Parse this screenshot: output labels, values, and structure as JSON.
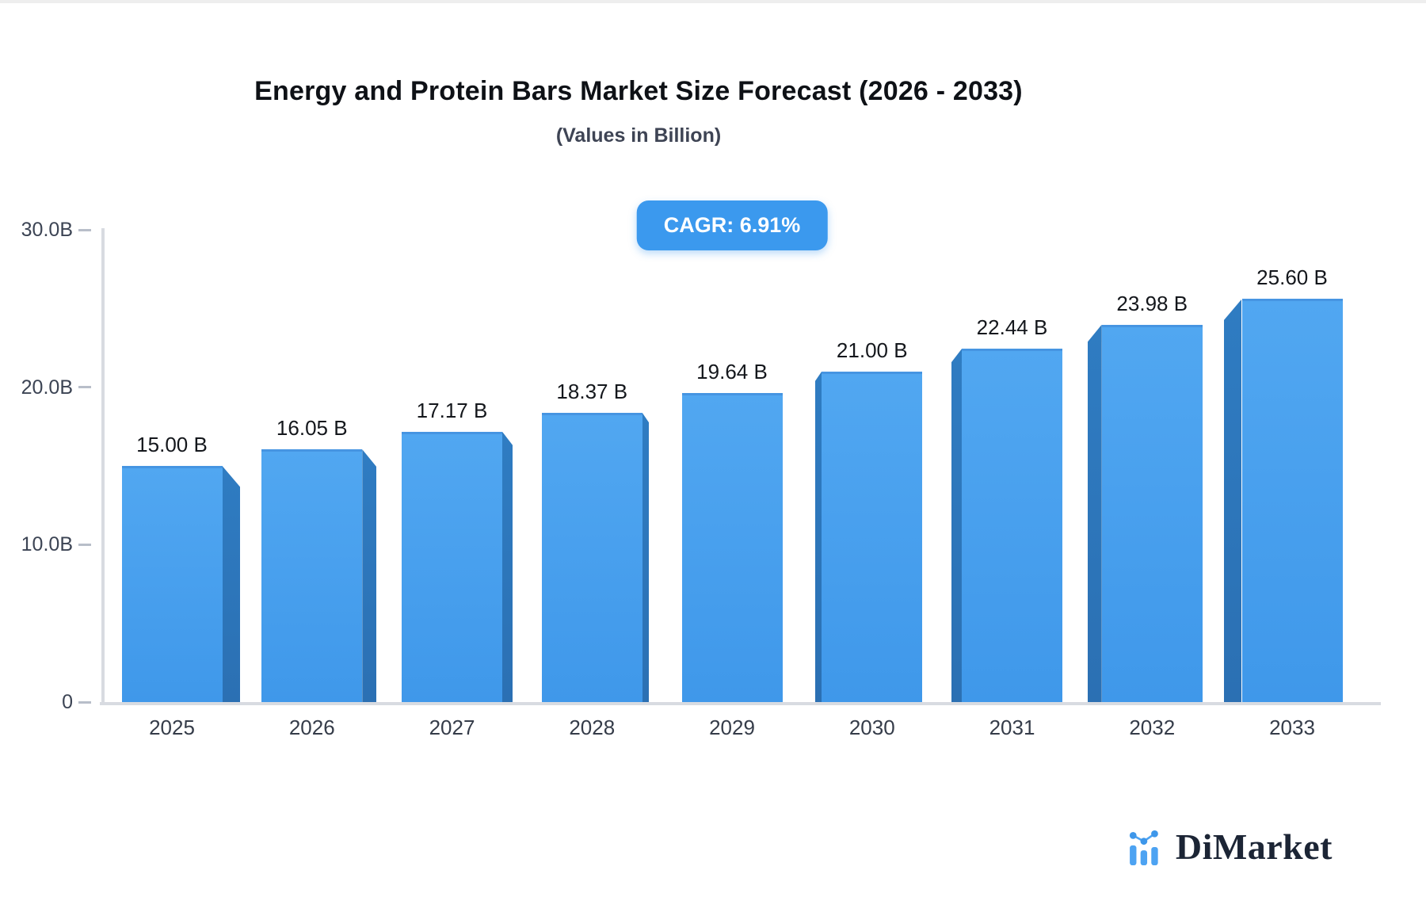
{
  "header": {
    "title": "Energy and Protein Bars Market Size Forecast (2026 - 2033)",
    "subtitle": "(Values in Billion)",
    "cagr_label": "CAGR: 6.91%"
  },
  "chart_data": {
    "type": "bar",
    "title": "Energy and Protein Bars Market Size Forecast (2026 - 2033)",
    "subtitle": "(Values in Billion)",
    "categories": [
      "2025",
      "2026",
      "2027",
      "2028",
      "2029",
      "2030",
      "2031",
      "2032",
      "2033"
    ],
    "values": [
      15.0,
      16.05,
      17.17,
      18.37,
      19.64,
      21.0,
      22.44,
      23.98,
      25.6
    ],
    "bar_labels": [
      "15.00 B",
      "16.05 B",
      "17.17 B",
      "18.37 B",
      "19.64 B",
      "21.00 B",
      "22.44 B",
      "23.98 B",
      "25.60 B"
    ],
    "unit": "Billion",
    "cagr": "6.91%",
    "xlabel": "",
    "ylabel": "",
    "ylim": [
      0,
      30
    ],
    "y_ticks": [
      {
        "value": 0,
        "label": "0"
      },
      {
        "value": 10,
        "label": "10.0B"
      },
      {
        "value": 20,
        "label": "20.0B"
      },
      {
        "value": 30,
        "label": "30.0B"
      }
    ],
    "grid": false,
    "legend": false,
    "bar_style": "3d-perspective-blue"
  },
  "branding": {
    "logo_text": "DiMarket",
    "logo_icon": "mini-bar-chart-with-dots-icon"
  },
  "colors": {
    "accent": "#3B99EE",
    "bar_face_top": "#51A7F1",
    "bar_face_bottom": "#3F98EA",
    "bar_side": "#2E78BC",
    "axis_line": "#D8DBE1",
    "tick": "#B8BEC9",
    "title_text": "#0E1116",
    "logo_text": "#1C2535",
    "logo_icon_blue": "#4DA3F2"
  }
}
